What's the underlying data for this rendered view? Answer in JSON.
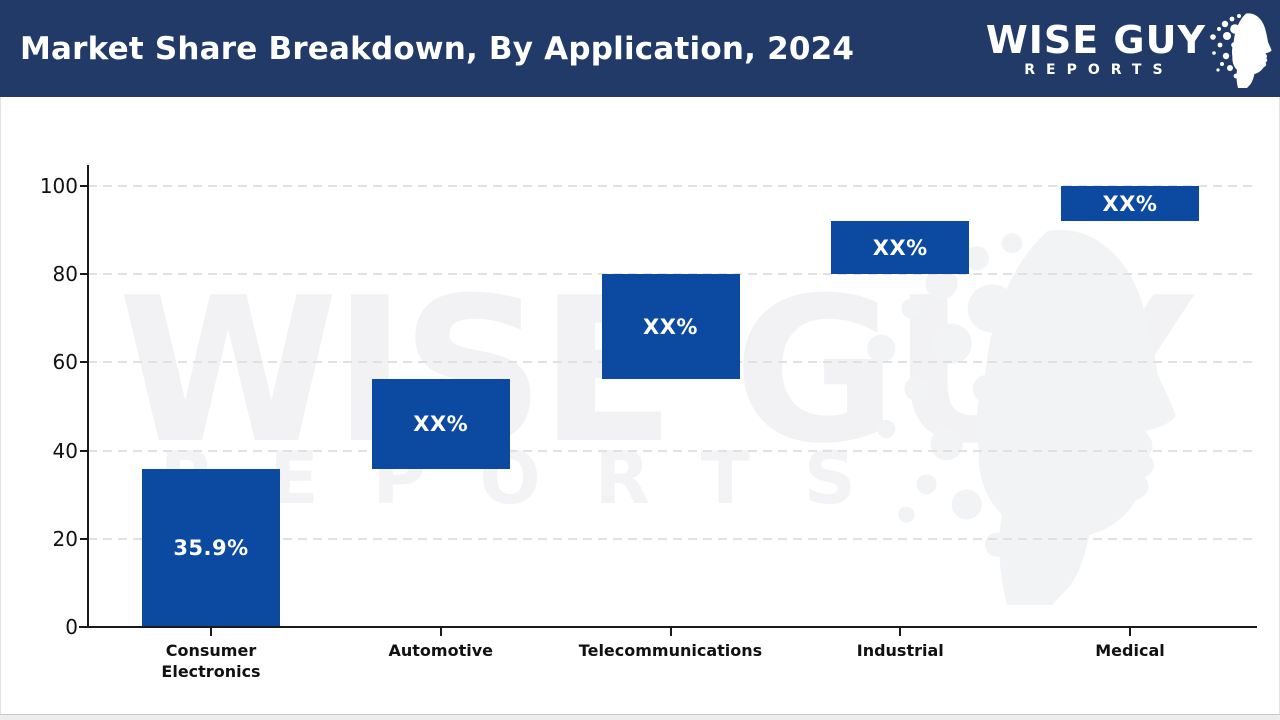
{
  "header": {
    "title": "Market Share Breakdown, By Application, 2024",
    "bg_color": "#213A67",
    "logo": {
      "wordmark": "WISE GUY",
      "subtext": "REPORTS"
    }
  },
  "watermark": {
    "line1": "WISE GUY",
    "line2": "REPORTS"
  },
  "chart_data": {
    "type": "bar",
    "subtype": "waterfall",
    "title": "Market Share Breakdown, By Application, 2024",
    "categories": [
      "Consumer Electronics",
      "Automotive",
      "Telecommunications",
      "Industrial",
      "Medical"
    ],
    "bars": [
      {
        "category": "Consumer Electronics",
        "tick_label": "Consumer\nElectronics",
        "start": 0,
        "end": 35.9,
        "label": "35.9%"
      },
      {
        "category": "Automotive",
        "tick_label": "Automotive",
        "start": 35.9,
        "end": 56.2,
        "label": "XX%"
      },
      {
        "category": "Telecommunications",
        "tick_label": "Telecommunications",
        "start": 56.2,
        "end": 80.0,
        "label": "XX%"
      },
      {
        "category": "Industrial",
        "tick_label": "Industrial",
        "start": 80.0,
        "end": 92.0,
        "label": "XX%"
      },
      {
        "category": "Medical",
        "tick_label": "Medical",
        "start": 92.0,
        "end": 100.0,
        "label": "XX%"
      }
    ],
    "xlabel": "",
    "ylabel": "",
    "yticks": [
      0,
      20,
      40,
      60,
      80,
      100
    ],
    "ylim": [
      0,
      105
    ],
    "grid": "horizontal-dashed",
    "legend": "none",
    "bar_color": "#0C4AA2",
    "bar_label_color": "#FFFFFF",
    "axis_color": "#1A1A1A",
    "gridline_color": "#E1E1E1"
  }
}
